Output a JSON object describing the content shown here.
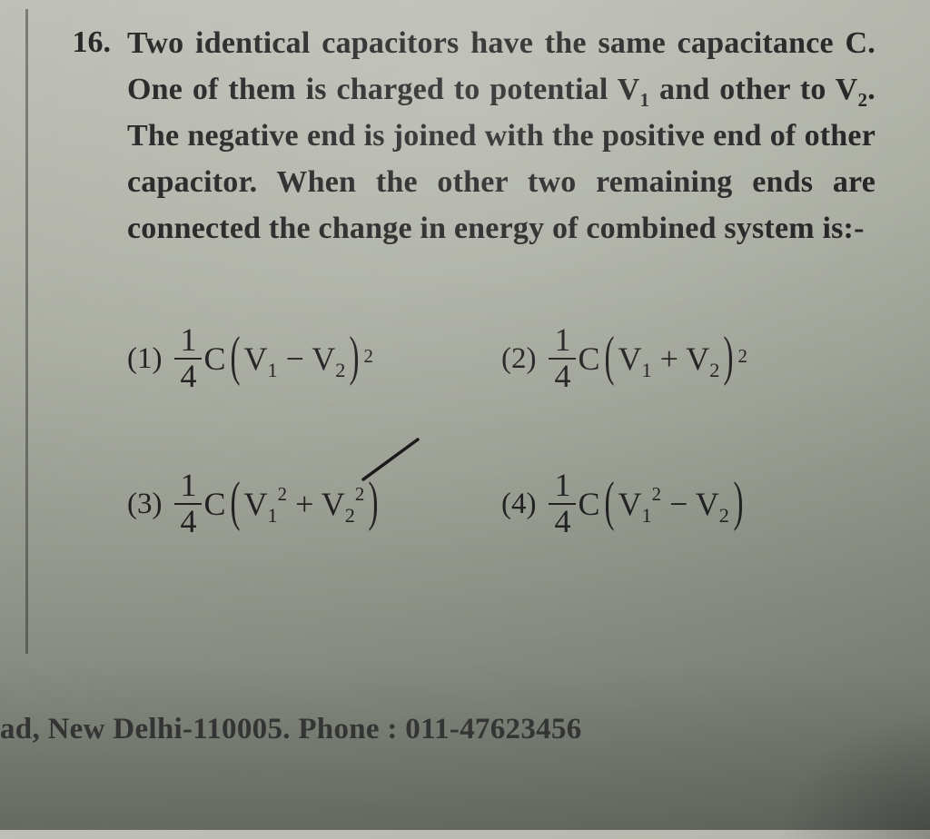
{
  "question": {
    "number": "16.",
    "text_html": "Two identical capacitors have the same capacitance C. One of them is charged to potential V<span class=\"sub\">1</span> and other to V<span class=\"sub\">2</span>. The negative end is joined with the positive end of other capacitor. When the other two remaining ends are connected the change in energy of combined system is:-"
  },
  "options": {
    "opt1": {
      "label": "(1)",
      "frac_top": "1",
      "frac_bot": "4",
      "coeff": "C",
      "inside_html": "V<span class=\"sub\">1</span> − V<span class=\"sub\">2</span>",
      "outer_sup": "2"
    },
    "opt2": {
      "label": "(2)",
      "frac_top": "1",
      "frac_bot": "4",
      "coeff": "C",
      "inside_html": "V<span class=\"sub\">1</span> + V<span class=\"sub\">2</span>",
      "outer_sup": "2"
    },
    "opt3": {
      "label": "(3)",
      "frac_top": "1",
      "frac_bot": "4",
      "coeff": "C",
      "inside_html": "V<span class=\"sub\">1</span><span class=\"sup\">2</span> + V<span class=\"sub\">2</span><span class=\"sup\">2</span>",
      "outer_sup": ""
    },
    "opt4": {
      "label": "(4)",
      "frac_top": "1",
      "frac_bot": "4",
      "coeff": "C",
      "inside_html": "V<span class=\"sub\">1</span><span class=\"sup\">2</span> − V<span class=\"sub\">2</span>",
      "outer_sup": ""
    }
  },
  "footer": "ad, New Delhi-110005. Phone : 011-47623456",
  "style": {
    "tick_stroke": "#1a1a1a",
    "tick_width": 3.5
  }
}
